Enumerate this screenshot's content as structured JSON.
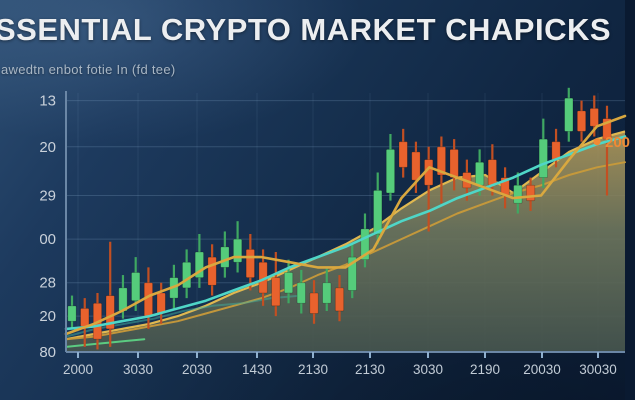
{
  "header": {
    "title": "SSENTIAL CRYPTO MARKET CHAPICKS",
    "subtitle": "awedtn enbot fotie In (fd tee)"
  },
  "colors": {
    "background_top": "#2c4d72",
    "background_bottom": "#0c1e38",
    "candle_up": "#55cc7b",
    "candle_up_wick": "#3fa862",
    "candle_down": "#e8622d",
    "candle_down_wick": "#c24f22",
    "ma_gold": "#d9a83f",
    "ma_cyan": "#4fd6c7",
    "area_edge": "#e0b850",
    "area_fill_top": "rgba(185,158,90,0.85)",
    "area_fill_bottom": "rgba(70,85,78,0.92)",
    "grid": "rgba(150,185,220,0.22)",
    "axis": "#6b87a6",
    "marker": "#f08a35"
  },
  "chart_data": {
    "type": "candlestick",
    "title": "SSENTIAL CRYPTO MARKET CHAPICKS",
    "xlabel": "",
    "ylabel": "",
    "grid": true,
    "value_range": [
      0,
      105
    ],
    "y_axis": {
      "tick_labels": [
        "13",
        "20",
        "29",
        "00",
        "28",
        "20",
        "80"
      ],
      "tick_values": [
        98,
        80,
        61,
        44,
        27,
        14,
        0
      ]
    },
    "x_axis": {
      "tick_labels": [
        "2000",
        "3030",
        "2030",
        "1430",
        "2130",
        "2130",
        "3030",
        "2190",
        "20030",
        "30030"
      ]
    },
    "candles_ohlc": [
      [
        12,
        22,
        9,
        18
      ],
      [
        17,
        21,
        2,
        10
      ],
      [
        19,
        23,
        1,
        5
      ],
      [
        22,
        43,
        2,
        9
      ],
      [
        16,
        30,
        13,
        25
      ],
      [
        20,
        37,
        16,
        31
      ],
      [
        27,
        33,
        9,
        14
      ],
      [
        23,
        27,
        11,
        15
      ],
      [
        21,
        34,
        17,
        29
      ],
      [
        25,
        40,
        21,
        35
      ],
      [
        29,
        46,
        25,
        39
      ],
      [
        37,
        42,
        22,
        26
      ],
      [
        33,
        47,
        29,
        41
      ],
      [
        35,
        51,
        31,
        44
      ],
      [
        40,
        46,
        24,
        29
      ],
      [
        35,
        40,
        18,
        23
      ],
      [
        29,
        39,
        14,
        18
      ],
      [
        23,
        36,
        19,
        31
      ],
      [
        19,
        32,
        15,
        27
      ],
      [
        23,
        28,
        11,
        15
      ],
      [
        19,
        33,
        16,
        27
      ],
      [
        25,
        30,
        12,
        16
      ],
      [
        24,
        42,
        21,
        37
      ],
      [
        36,
        54,
        33,
        48
      ],
      [
        46,
        70,
        42,
        63
      ],
      [
        62,
        85,
        59,
        79
      ],
      [
        82,
        87,
        68,
        72
      ],
      [
        78,
        82,
        62,
        67
      ],
      [
        75,
        80,
        47,
        65
      ],
      [
        80,
        84,
        58,
        69
      ],
      [
        79,
        83,
        63,
        68
      ],
      [
        70,
        75,
        59,
        64
      ],
      [
        65,
        79,
        61,
        74
      ],
      [
        75,
        81,
        61,
        65
      ],
      [
        68,
        72,
        56,
        61
      ],
      [
        58,
        70,
        54,
        65
      ],
      [
        65,
        68,
        55,
        59
      ],
      [
        68,
        91,
        64,
        83
      ],
      [
        82,
        87,
        72,
        75
      ],
      [
        86,
        103,
        82,
        99
      ],
      [
        94,
        98,
        82,
        86
      ],
      [
        95,
        100,
        84,
        88
      ],
      [
        91,
        96,
        61,
        83
      ]
    ],
    "overlays": [
      {
        "name": "area-indicator",
        "type": "area",
        "color_edge": "#e0b850",
        "span": [
          0,
          1
        ],
        "values": [
          5,
          7,
          9,
          11,
          14,
          18,
          23,
          27,
          32,
          37,
          42,
          48,
          56,
          63,
          68,
          69,
          62,
          70,
          78,
          83,
          86
        ]
      },
      {
        "name": "ma-gold-slow",
        "type": "line",
        "color": "#c89a3a",
        "width": 2,
        "opacity": 0.95,
        "span": [
          0,
          1
        ],
        "values": [
          5,
          6,
          8,
          10,
          12,
          15,
          18,
          21,
          25,
          30,
          34,
          39,
          44,
          49,
          54,
          58,
          62,
          65,
          69,
          72,
          74
        ]
      },
      {
        "name": "teal-secondary",
        "type": "line",
        "color": "#3fae9e",
        "width": 2,
        "opacity": 0.5,
        "span": [
          0,
          0.42
        ],
        "values": [
          6,
          9,
          11,
          13,
          16,
          18,
          19,
          21,
          22
        ]
      },
      {
        "name": "green-accent",
        "type": "line",
        "color": "#5fe08a",
        "width": 2,
        "opacity": 0.85,
        "span": [
          0,
          0.14
        ],
        "values": [
          2,
          3,
          4,
          5
        ]
      },
      {
        "name": "ma-cyan",
        "type": "line",
        "color": "#4fd6c7",
        "width": 2.6,
        "opacity": 1,
        "span": [
          0,
          1
        ],
        "above_candles": true,
        "values": [
          9,
          10,
          12,
          14,
          17,
          20,
          24,
          28,
          33,
          37,
          41,
          46,
          51,
          55,
          60,
          64,
          68,
          73,
          77,
          81,
          84
        ]
      },
      {
        "name": "ma-gold-fast",
        "type": "line",
        "color": "#d9a83f",
        "width": 2.6,
        "opacity": 1,
        "span": [
          0,
          1
        ],
        "above_candles": true,
        "values": [
          7,
          11,
          16,
          22,
          26,
          33,
          37,
          37,
          35,
          33,
          33,
          40,
          60,
          72,
          68,
          64,
          60,
          61,
          75,
          88,
          92
        ]
      }
    ],
    "price_marker": {
      "label": "200",
      "value": 82,
      "color": "#f08a35"
    },
    "legend": null
  }
}
